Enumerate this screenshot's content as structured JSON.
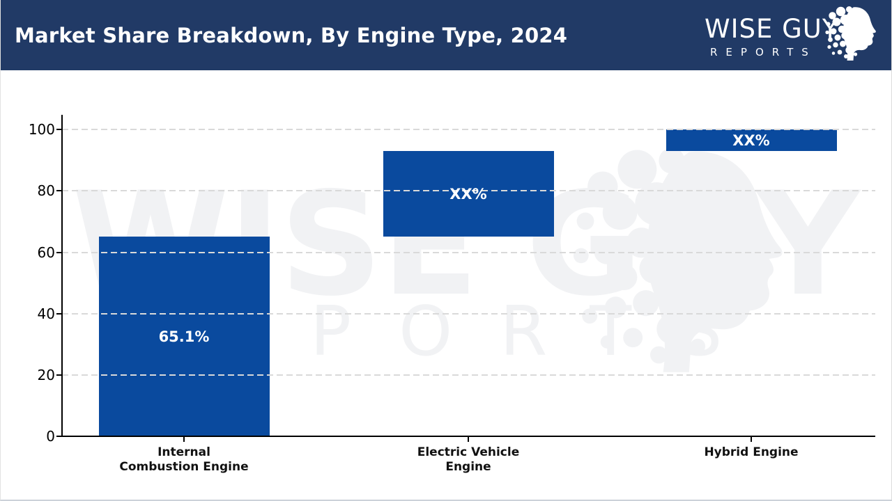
{
  "header": {
    "title": "Market Share Breakdown, By Engine Type, 2024",
    "logo": {
      "line1": "WISE GUY",
      "line2": "REPORTS"
    }
  },
  "watermark": {
    "line1": "WISE GUY",
    "line2": "REPORTS"
  },
  "colors": {
    "header_bg": "#213a66",
    "bar": "#0a4a9e",
    "gridline": "#d9d9d9",
    "axis": "#000000",
    "bar_label": "#ffffff",
    "watermark": "#f1f2f4"
  },
  "chart_data": {
    "type": "bar",
    "subtype": "waterfall-style segmented breakdown, one floating segment per category",
    "title": "Market Share Breakdown, By Engine Type, 2024",
    "categories": [
      "Internal Combustion Engine",
      "Electric Vehicle Engine",
      "Hybrid Engine"
    ],
    "category_label_lines": [
      [
        "Internal",
        "Combustion Engine"
      ],
      [
        "Electric Vehicle",
        "Engine"
      ],
      [
        "Hybrid Engine"
      ]
    ],
    "segments": [
      {
        "category": "Internal Combustion Engine",
        "start": 0,
        "end": 65.1,
        "value_label": "65.1%"
      },
      {
        "category": "Electric Vehicle Engine",
        "start": 65.1,
        "end": 93,
        "value_label": "XX%"
      },
      {
        "category": "Hybrid Engine",
        "start": 93,
        "end": 100,
        "value_label": "XX%"
      }
    ],
    "xlabel": "",
    "ylabel": "",
    "ylim": [
      0,
      100
    ],
    "yticks": [
      0,
      20,
      40,
      60,
      80,
      100
    ],
    "grid": "horizontal dashed, drawn above bars",
    "legend": "none"
  }
}
